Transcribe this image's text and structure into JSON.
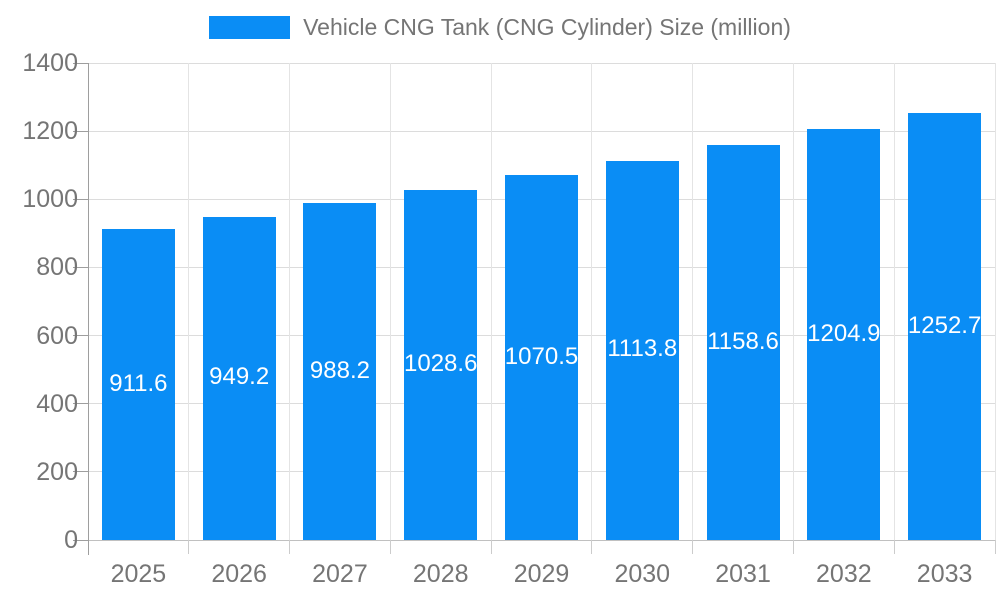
{
  "legend": {
    "label": "Vehicle CNG Tank (CNG Cylinder) Size (million)"
  },
  "chart_data": {
    "type": "bar",
    "title": "Vehicle CNG Tank (CNG Cylinder) Size (million)",
    "categories": [
      "2025",
      "2026",
      "2027",
      "2028",
      "2029",
      "2030",
      "2031",
      "2032",
      "2033"
    ],
    "values": [
      911.6,
      949.2,
      988.2,
      1028.6,
      1070.5,
      1113.8,
      1158.6,
      1204.9,
      1252.7
    ],
    "value_labels": [
      "911.6",
      "949.2",
      "988.2",
      "1028.6",
      "1070.5",
      "1113.8",
      "1158.6",
      "1204.9",
      "1252.7"
    ],
    "xlabel": "",
    "ylabel": "",
    "ylim": [
      0,
      1400
    ],
    "ytick_step": 200,
    "ytick_labels": [
      "0",
      "200",
      "400",
      "600",
      "800",
      "1000",
      "1200",
      "1400"
    ],
    "grid": true,
    "legend_position": "top",
    "bar_color": "#0a8df5",
    "value_label_color": "#ffffff",
    "axis_text_color": "#757575"
  }
}
